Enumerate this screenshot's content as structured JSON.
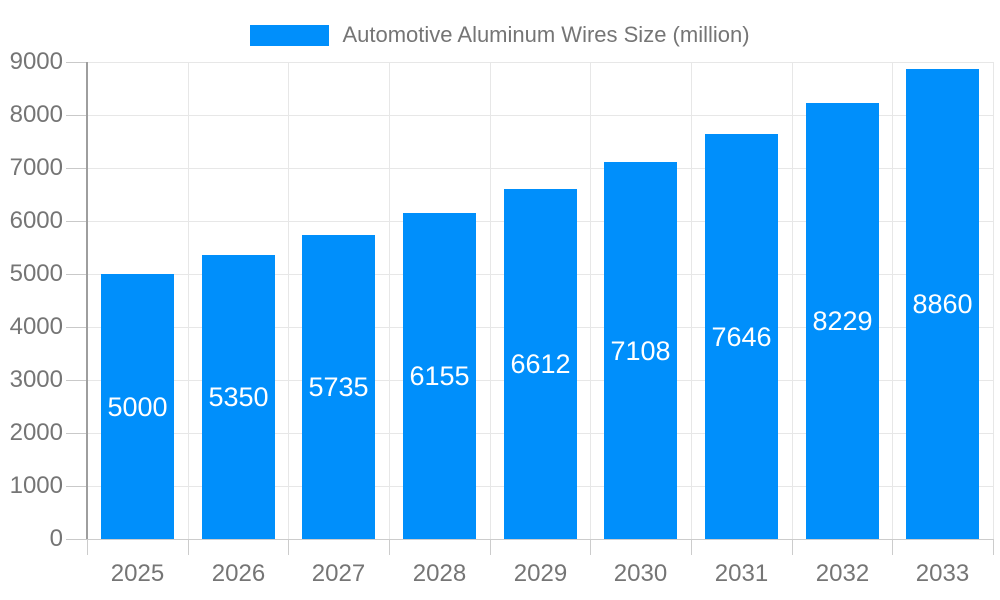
{
  "legend": {
    "series_label": "Automotive Aluminum Wires Size (million)"
  },
  "colors": {
    "bar": "#008FFB",
    "axis_text": "#757575",
    "value_label_text": "#ffffff",
    "gridline": "#e7e7e7",
    "axis_line": "#9e9e9e",
    "tick_line": "#cccccc",
    "background": "#ffffff"
  },
  "chart_data": {
    "type": "bar",
    "title": "Automotive Aluminum Wires Size (million)",
    "categories": [
      "2025",
      "2026",
      "2027",
      "2028",
      "2029",
      "2030",
      "2031",
      "2032",
      "2033"
    ],
    "series": [
      {
        "name": "Automotive Aluminum Wires Size (million)",
        "color": "#008FFB",
        "values": [
          5000,
          5350,
          5735,
          6155,
          6612,
          7108,
          7646,
          8229,
          8860
        ]
      }
    ],
    "value_labels": [
      "5000",
      "5350",
      "5735",
      "6155",
      "6612",
      "7108",
      "7646",
      "8229",
      "8860"
    ],
    "xlabel": "",
    "ylabel": "",
    "ylim": [
      0,
      9000
    ],
    "ytick_step": 1000,
    "ytick_labels": [
      "0",
      "1000",
      "2000",
      "3000",
      "4000",
      "5000",
      "6000",
      "7000",
      "8000",
      "9000"
    ],
    "grid": true,
    "legend_position": "top",
    "value_label_position": "inside-center"
  }
}
